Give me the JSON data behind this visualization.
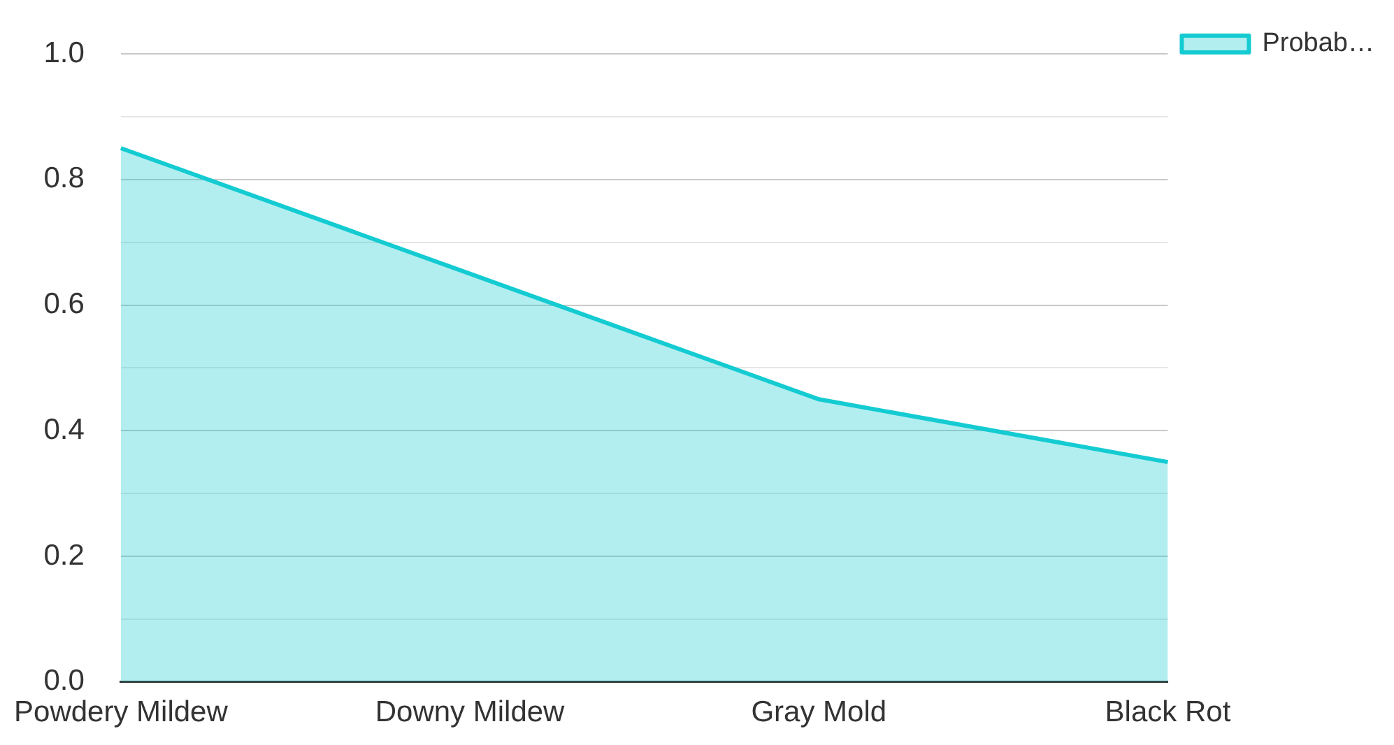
{
  "chart_data": {
    "type": "area",
    "categories": [
      "Powdery Mildew",
      "Downy Mildew",
      "Gray Mold",
      "Black Rot"
    ],
    "series": [
      {
        "name": "Probab…",
        "color": "#14cbd2",
        "values": [
          0.85,
          0.65,
          0.45,
          0.35
        ]
      }
    ],
    "ylim": [
      0,
      1
    ],
    "yticks": [
      {
        "value": 0,
        "label": "0.0"
      },
      {
        "value": 0.1,
        "label": null
      },
      0.2,
      {
        "value": 0.3,
        "label": null
      },
      0.4,
      {
        "value": 0.5,
        "label": null
      },
      0.6,
      {
        "value": 0.7,
        "label": null
      },
      0.8,
      {
        "value": 0.9,
        "label": null
      },
      {
        "value": 1,
        "label": "1.0"
      }
    ],
    "grid": "y",
    "legend": "top right"
  }
}
